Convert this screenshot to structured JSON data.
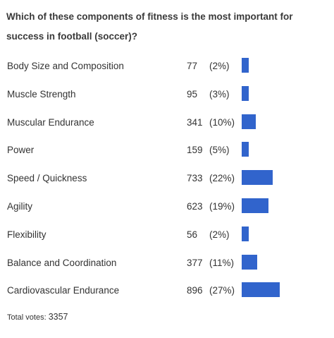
{
  "poll": {
    "question": "Which of these components of fitness is the most important for success in football (soccer)?",
    "options": [
      {
        "label": "Body Size and Composition",
        "count": "77",
        "percent": "(2%)",
        "share": 0.02
      },
      {
        "label": "Muscle Strength",
        "count": "95",
        "percent": "(3%)",
        "share": 0.03
      },
      {
        "label": "Muscular Endurance",
        "count": "341",
        "percent": "(10%)",
        "share": 0.1
      },
      {
        "label": "Power",
        "count": "159",
        "percent": "(5%)",
        "share": 0.05
      },
      {
        "label": "Speed / Quickness",
        "count": "733",
        "percent": "(22%)",
        "share": 0.22
      },
      {
        "label": "Agility",
        "count": "623",
        "percent": "(19%)",
        "share": 0.19
      },
      {
        "label": "Flexibility",
        "count": "56",
        "percent": "(2%)",
        "share": 0.02
      },
      {
        "label": "Balance and Coordination",
        "count": "377",
        "percent": "(11%)",
        "share": 0.11
      },
      {
        "label": "Cardiovascular Endurance",
        "count": "896",
        "percent": "(27%)",
        "share": 0.27
      }
    ],
    "total_label": "Total votes:",
    "total_value": "3357",
    "bar_color": "#3164cc"
  }
}
